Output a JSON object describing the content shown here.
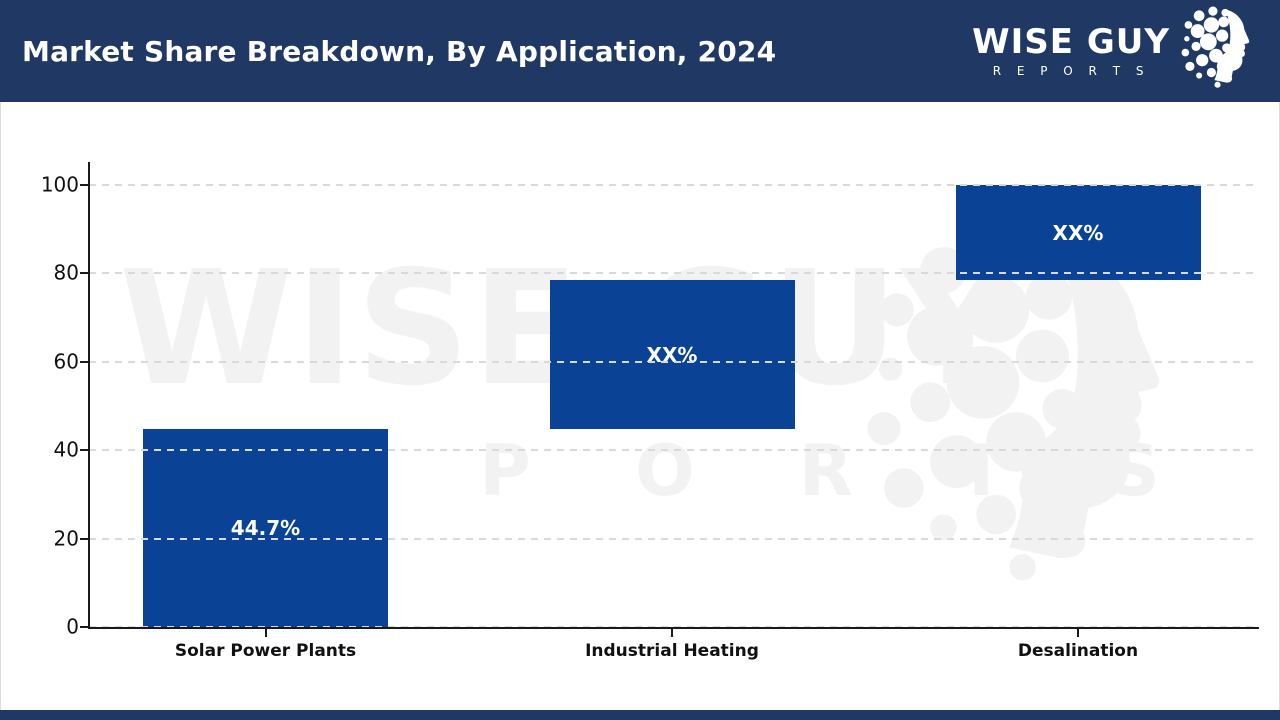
{
  "header": {
    "title": "Market Share Breakdown, By Application, 2024",
    "logo": {
      "name": "WISE GUY",
      "subtitle": "R E P O R T S"
    }
  },
  "watermark": {
    "line1": "WISE GUY",
    "line2": "R E P O R T S"
  },
  "chart_data": {
    "type": "bar",
    "subtype": "waterfall",
    "title": "Market Share Breakdown, By Application, 2024",
    "categories": [
      "Solar Power Plants",
      "Industrial Heating",
      "Desalination"
    ],
    "series": [
      {
        "name": "Market Share (%)",
        "segments": [
          {
            "category": "Solar Power Plants",
            "start": 0,
            "end": 44.7,
            "label": "44.7%"
          },
          {
            "category": "Industrial Heating",
            "start": 44.7,
            "end": 78.5,
            "label": "XX%"
          },
          {
            "category": "Desalination",
            "start": 78.5,
            "end": 100,
            "label": "XX%"
          }
        ]
      }
    ],
    "xlabel": "",
    "ylabel": "",
    "ylim": [
      0,
      105
    ],
    "yticks": [
      0,
      20,
      40,
      60,
      80,
      100
    ],
    "grid": "horizontal-dashed",
    "legend": "none"
  },
  "colors": {
    "header_bg": "#1f3864",
    "footer_bg": "#1f3864",
    "bar": "#0a4296",
    "bar_label": "#ffffff",
    "gridline": "#d9d9d9",
    "axis": "#1a1a1a",
    "watermark": "#f2f2f2"
  }
}
